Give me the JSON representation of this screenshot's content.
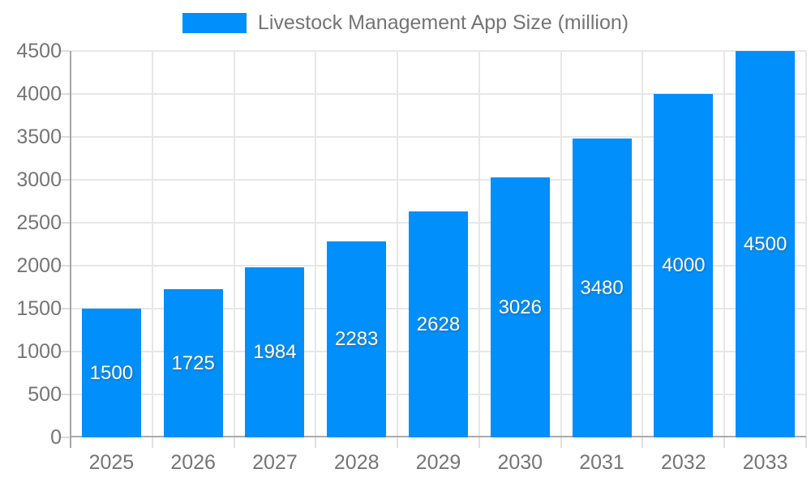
{
  "chart_data": {
    "type": "bar",
    "title": "Livestock Management App Size (million)",
    "categories": [
      "2025",
      "2026",
      "2027",
      "2028",
      "2029",
      "2030",
      "2031",
      "2032",
      "2033"
    ],
    "values": [
      1500,
      1725,
      1984,
      2283,
      2628,
      3026,
      3480,
      4000,
      4500
    ],
    "series": [
      {
        "name": "Livestock Management App Size (million)",
        "values": [
          1500,
          1725,
          1984,
          2283,
          2628,
          3026,
          3480,
          4000,
          4500
        ]
      }
    ],
    "xlabel": "",
    "ylabel": "",
    "ylim": [
      0,
      4500
    ],
    "ytick_step": 500,
    "yticks": [
      0,
      500,
      1000,
      1500,
      2000,
      2500,
      3000,
      3500,
      4000,
      4500
    ],
    "grid": "horizontal-and-vertical",
    "legend_position": "top-center",
    "data_labels": "inside-bar-centered-white",
    "colors": {
      "bar": "#008FFB",
      "value_label": "#ffffff",
      "axis_text": "#757575",
      "legend_text": "#757575",
      "gridline": "#e7e7e7",
      "axis_line": "#a6a6a6",
      "tick": "#e0e0e0",
      "background": "#ffffff"
    }
  }
}
